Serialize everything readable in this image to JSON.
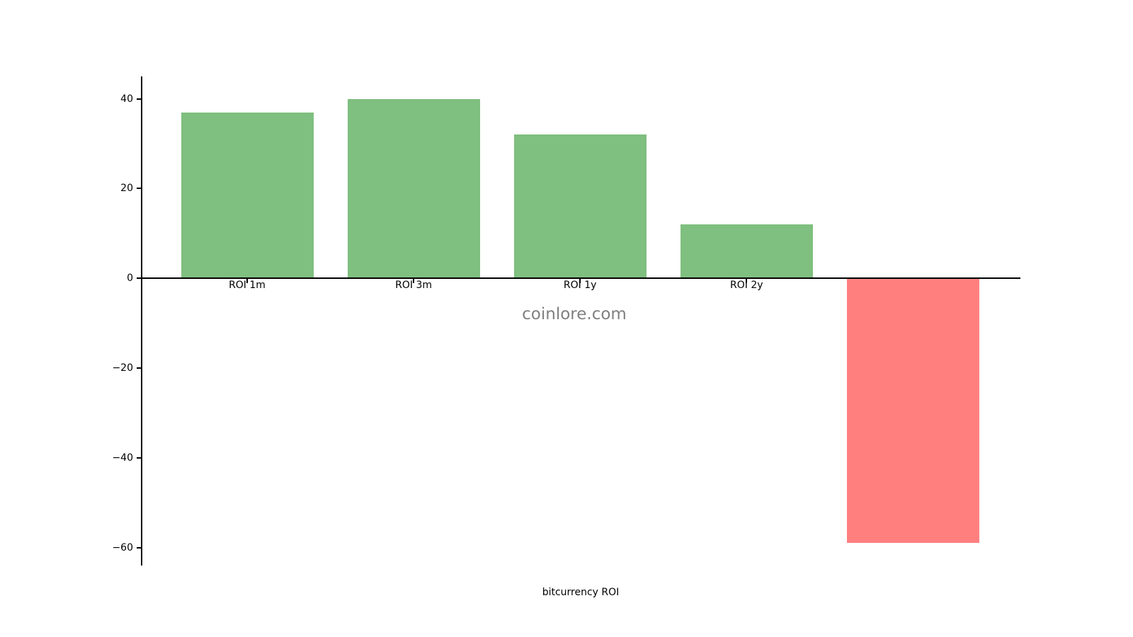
{
  "watermark": "coinlore.com",
  "xlabel": "bitcurrency ROI",
  "chart_data": {
    "type": "bar",
    "title": "",
    "xlabel": "bitcurrency ROI",
    "ylabel": "",
    "categories": [
      "ROI 1m",
      "ROI 3m",
      "ROI 1y",
      "ROI 2y",
      ""
    ],
    "values": [
      37,
      40,
      32,
      12,
      -59
    ],
    "bar_colors": [
      "#7fbf7f",
      "#7fbf7f",
      "#7fbf7f",
      "#7fbf7f",
      "#ff7f7f"
    ],
    "colors": {
      "positive": "#7fbf7f",
      "negative": "#ff7f7f",
      "axis": "#000000",
      "watermark_text": "#808080"
    },
    "ylim": [
      -64,
      45
    ],
    "yticks": [
      40,
      20,
      0,
      -20,
      -40,
      -60
    ],
    "grid": false,
    "legend": null,
    "watermark": "coinlore.com"
  }
}
